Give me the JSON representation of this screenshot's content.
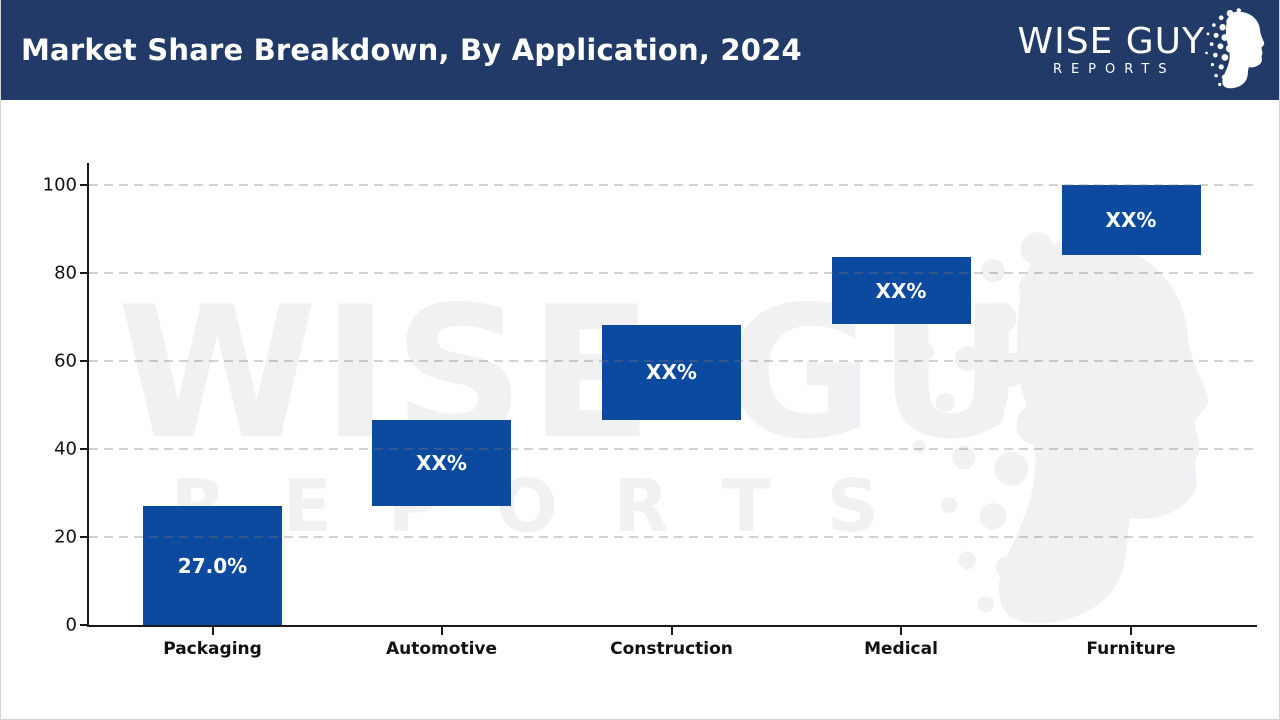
{
  "header": {
    "title": "Market Share Breakdown, By Application, 2024",
    "logo": {
      "line1": "WISE GUY",
      "line2": "REPORTS"
    }
  },
  "watermark": {
    "line1": "WISE GUY",
    "line2": "REPORTS"
  },
  "colors": {
    "header_bg": "#223A67",
    "bar": "#0B4A9F",
    "bar_label": "#FFFFFF",
    "axis": "#1A1A1A",
    "gridline": "#D9D9D9",
    "watermark": "#F1F1F3",
    "title_text": "#FFFFFF"
  },
  "chart_data": {
    "type": "bar",
    "subtype": "waterfall-floating-bars",
    "title": "Market Share Breakdown, By Application, 2024",
    "categories": [
      "Packaging",
      "Automotive",
      "Construction",
      "Medical",
      "Furniture"
    ],
    "series": [
      {
        "name": "Market Share",
        "segments": [
          {
            "start": 0,
            "end": 27.0
          },
          {
            "start": 27.0,
            "end": 46.6
          },
          {
            "start": 46.6,
            "end": 68.2
          },
          {
            "start": 68.4,
            "end": 83.6
          },
          {
            "start": 84.1,
            "end": 100.0
          }
        ]
      }
    ],
    "bar_labels": [
      "27.0%",
      "XX%",
      "XX%",
      "XX%",
      "XX%"
    ],
    "xlabel": "",
    "ylabel": "",
    "yticks": [
      0,
      20,
      40,
      60,
      80,
      100
    ],
    "ylim": [
      0,
      100
    ],
    "grid": "horizontal-dashed",
    "legend": "none"
  }
}
